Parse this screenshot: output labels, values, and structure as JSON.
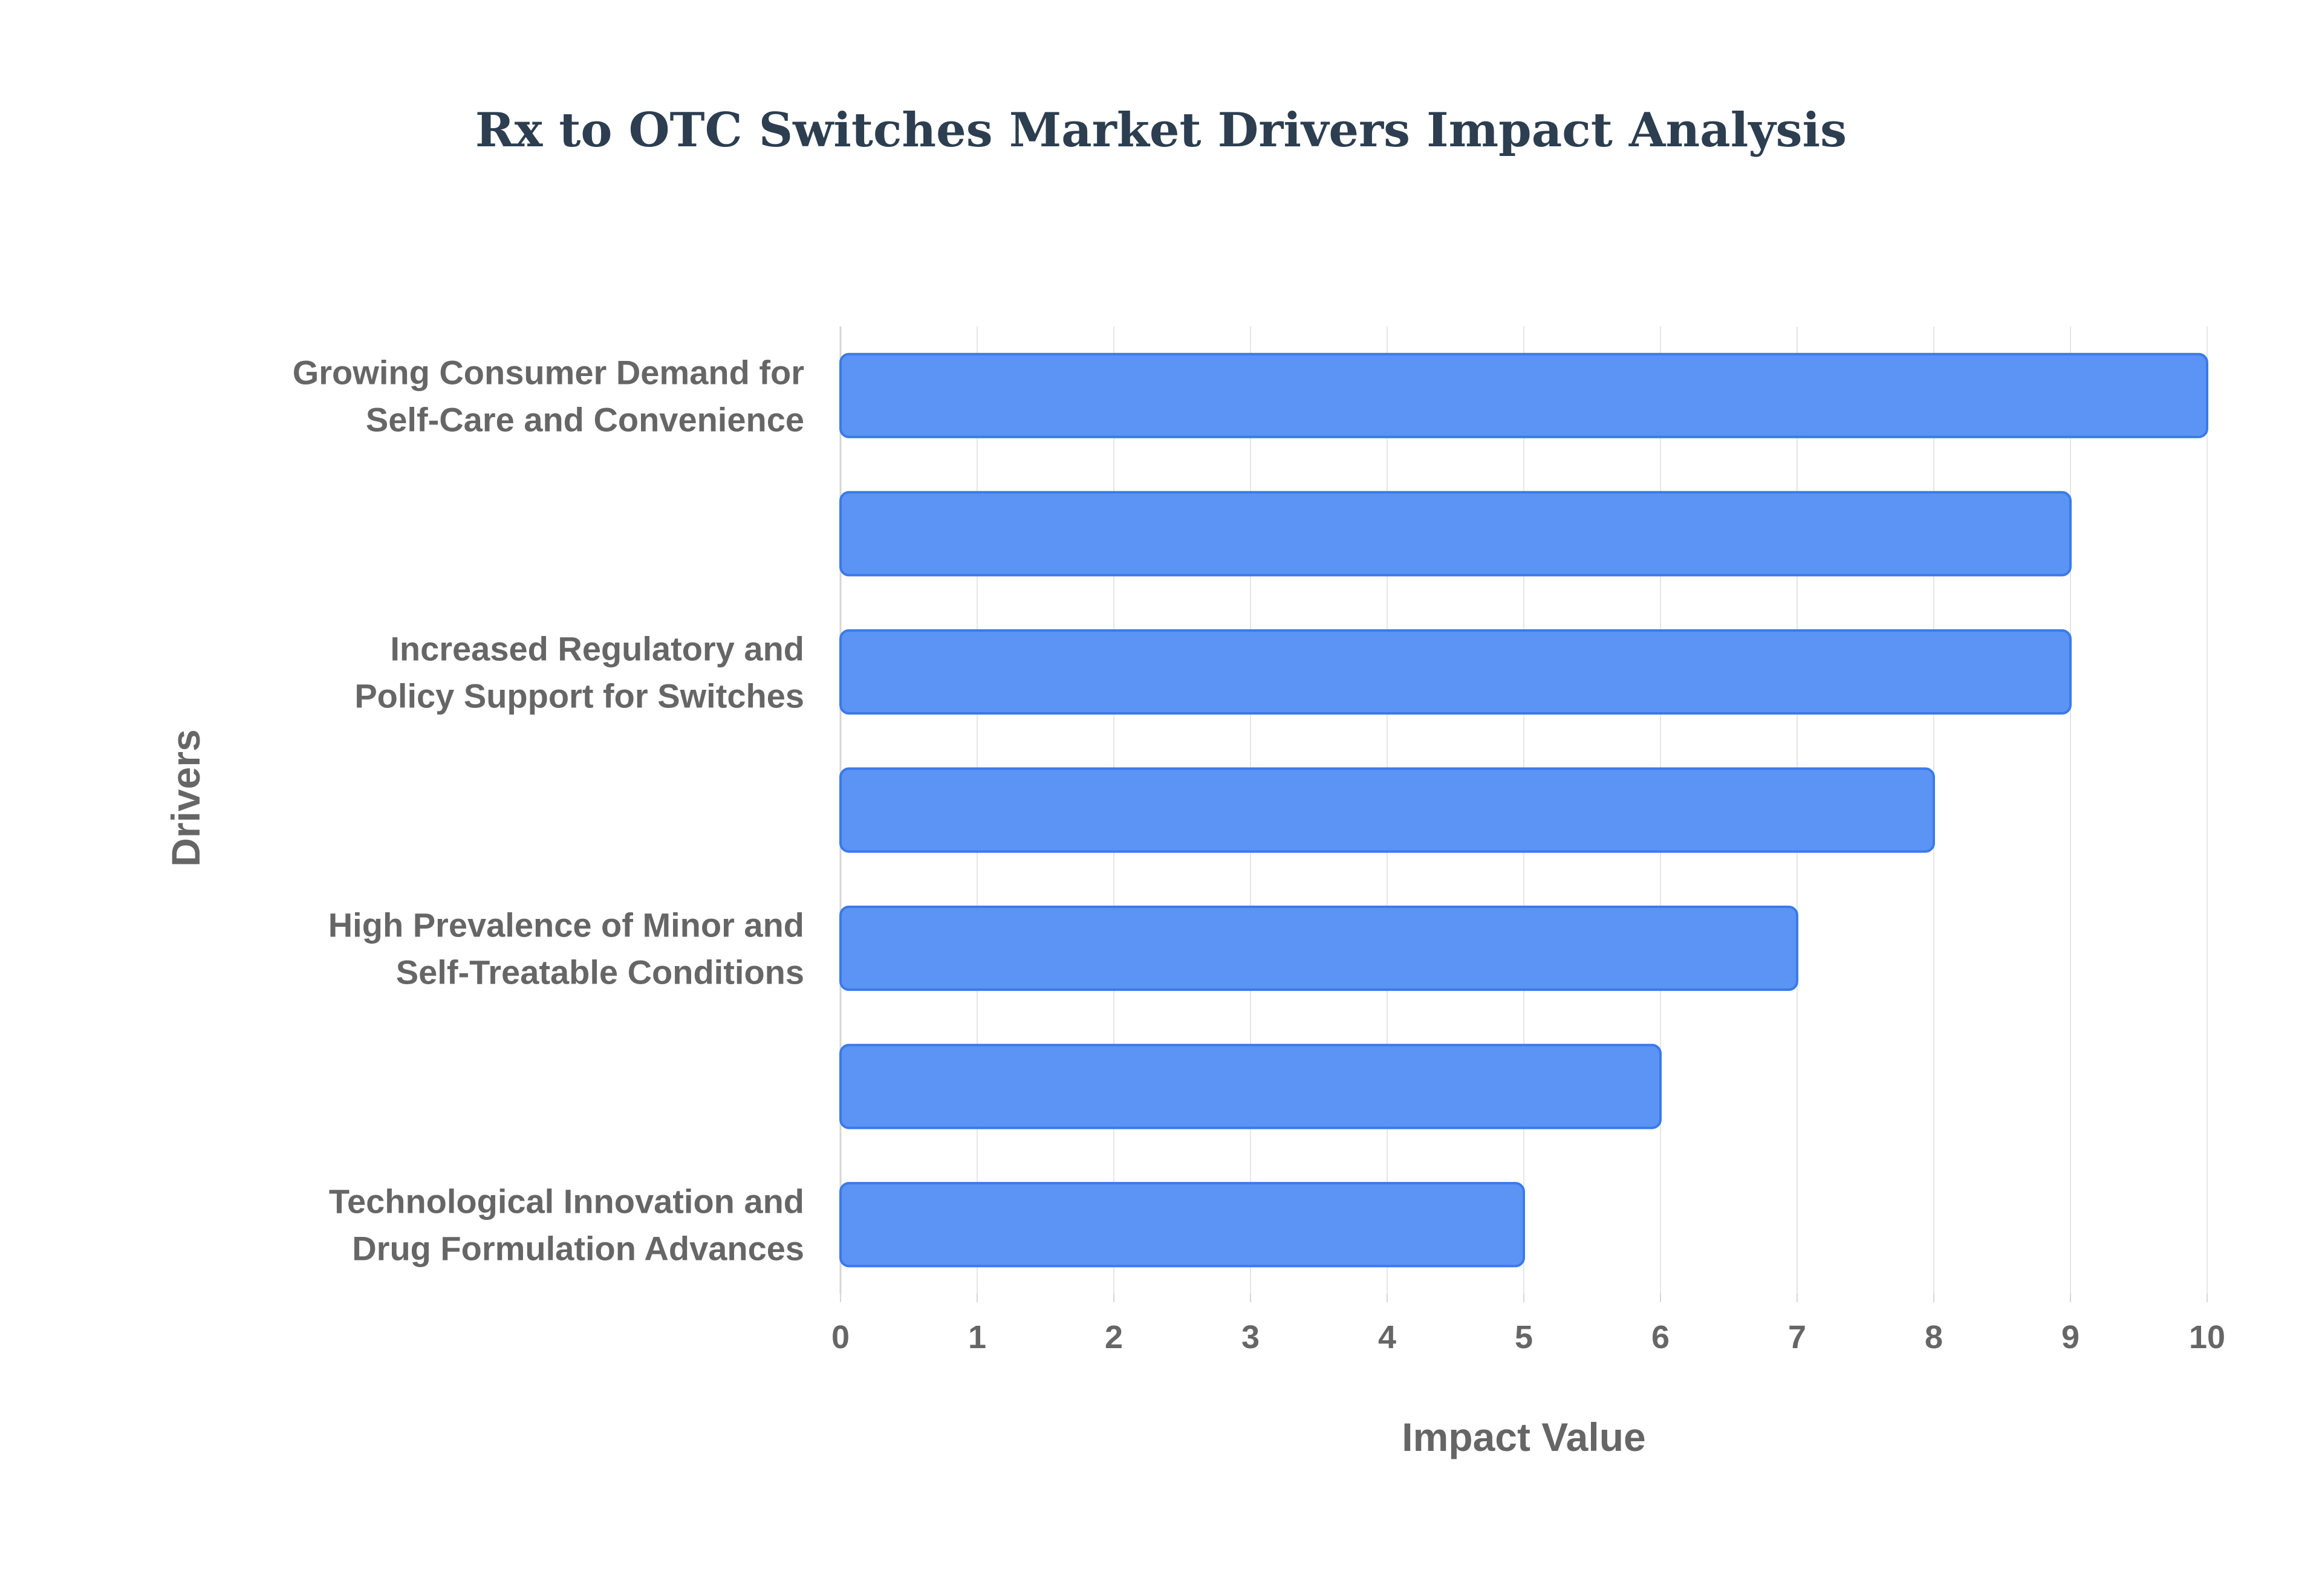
{
  "chart_data": {
    "type": "bar",
    "orientation": "horizontal",
    "title": "Rx to OTC Switches Market Drivers Impact Analysis",
    "xlabel": "Impact Value",
    "ylabel": "Drivers",
    "xlim": [
      0,
      10
    ],
    "xticks": [
      0,
      1,
      2,
      3,
      4,
      5,
      6,
      7,
      8,
      9,
      10
    ],
    "grid": true,
    "legend": "none",
    "bar_color": "#5b94f5",
    "bar_border_color": "#3b7ae8",
    "categories": [
      [
        "Growing Consumer Demand for",
        "Self-Care and Convenience"
      ],
      [],
      [
        "Increased Regulatory and",
        "Policy Support for Switches"
      ],
      [],
      [
        "High Prevalence of Minor and",
        "Self-Treatable Conditions"
      ],
      [],
      [
        "Technological Innovation and",
        "Drug Formulation Advances"
      ]
    ],
    "values": [
      10,
      9,
      9,
      8,
      7,
      6,
      5
    ]
  }
}
